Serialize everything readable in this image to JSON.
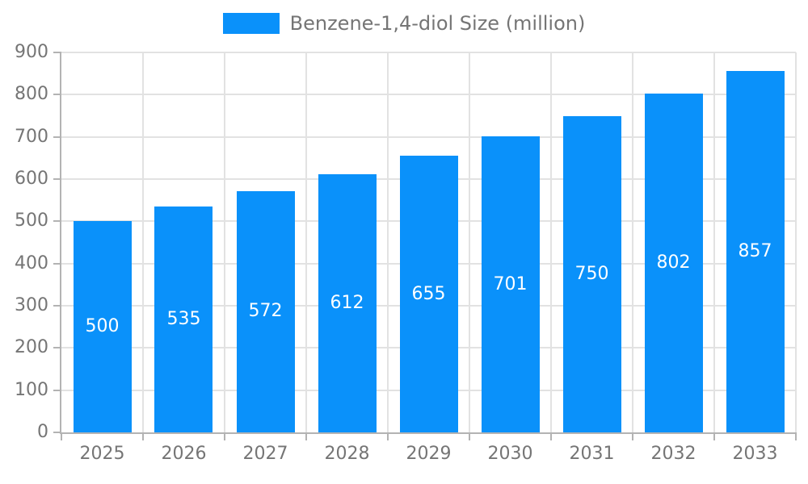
{
  "chart_data": {
    "type": "bar",
    "title": "Benzene-1,4-diol Size (million)",
    "legend": {
      "label": "Benzene-1,4-diol Size (million)",
      "position": "top"
    },
    "categories": [
      "2025",
      "2026",
      "2027",
      "2028",
      "2029",
      "2030",
      "2031",
      "2032",
      "2033"
    ],
    "values": [
      500,
      535,
      572,
      612,
      655,
      701,
      750,
      802,
      857
    ],
    "bar_labels": [
      "500",
      "535",
      "572",
      "612",
      "655",
      "701",
      "750",
      "802",
      "857"
    ],
    "xlabel": "",
    "ylabel": "",
    "ylim": [
      0,
      900
    ],
    "yticks": [
      0,
      100,
      200,
      300,
      400,
      500,
      600,
      700,
      800,
      900
    ],
    "grid": true,
    "colors": {
      "bar": "#0a91fa",
      "bar_label": "#ffffff",
      "axis_line": "#b3b3b3",
      "gridline": "#e2e2e2",
      "tick_text": "#757575",
      "legend_text": "#757575",
      "background": "#ffffff"
    }
  }
}
